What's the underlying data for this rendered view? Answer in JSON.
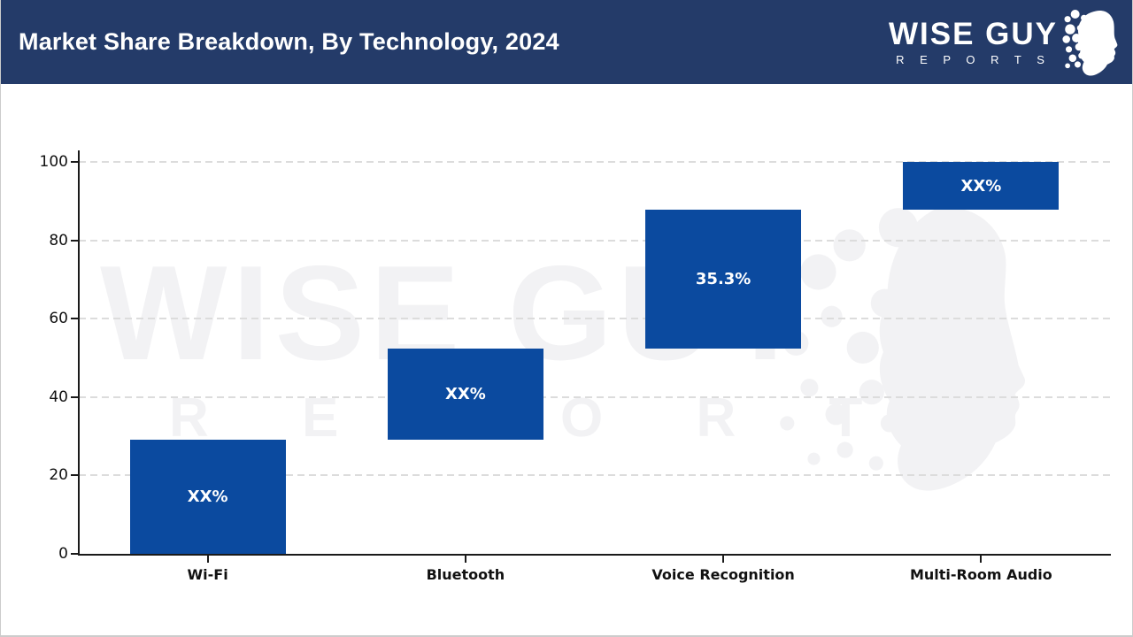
{
  "header": {
    "title": "Market Share Breakdown, By Technology, 2024",
    "logo": {
      "line1": "WISE GUY",
      "line2": "R E P O R T S",
      "icon": "dotted-head-profile"
    }
  },
  "watermark": {
    "line1": "WISE GUY",
    "line2": "R E P O R T S",
    "icon": "dotted-head-profile"
  },
  "colors": {
    "header_bg": "#243b69",
    "bar": "#0b4a9f",
    "grid": "#dcdcdc",
    "axis": "#1a1a1a",
    "watermark": "#f2f2f4",
    "bar_label_text": "#ffffff"
  },
  "chart_data": {
    "type": "bar",
    "variant": "floating-waterfall",
    "title": "Market Share Breakdown, By Technology, 2024",
    "categories": [
      "Wi-Fi",
      "Bluetooth",
      "Voice Recognition",
      "Multi-Room Audio"
    ],
    "segments": [
      {
        "category": "Wi-Fi",
        "start": 0,
        "end": 29.2,
        "value": 29.2,
        "label": "XX%"
      },
      {
        "category": "Bluetooth",
        "start": 29.2,
        "end": 52.5,
        "value": 23.3,
        "label": "XX%"
      },
      {
        "category": "Voice Recognition",
        "start": 52.5,
        "end": 87.8,
        "value": 35.3,
        "label": "35.3%"
      },
      {
        "category": "Multi-Room Audio",
        "start": 87.8,
        "end": 100,
        "value": 12.2,
        "label": "XX%"
      }
    ],
    "y_ticks": [
      0,
      20,
      40,
      60,
      80,
      100
    ],
    "ylim": [
      0,
      103
    ],
    "xlabel": "",
    "ylabel": "",
    "grid": "horizontal-dashed",
    "legend": "none",
    "bar_color": "#0b4a9f"
  }
}
